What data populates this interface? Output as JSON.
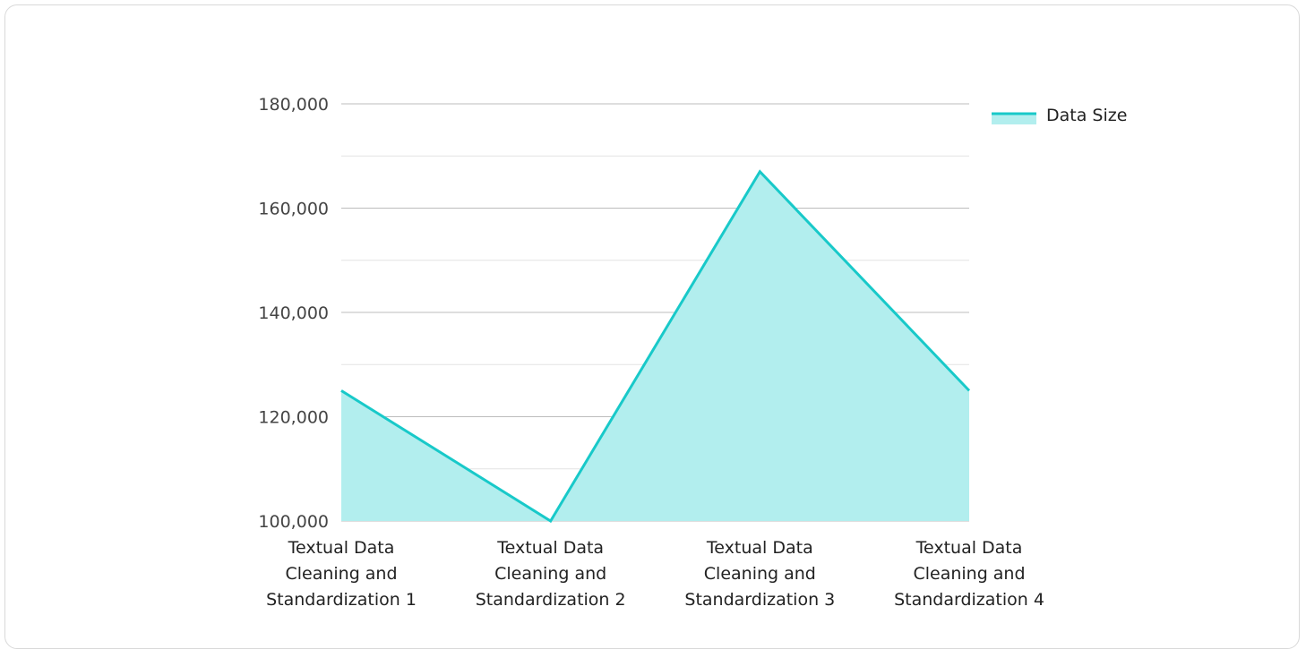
{
  "chart_data": {
    "type": "area",
    "categories": [
      "Textual Data Cleaning and Standardization 1",
      "Textual Data Cleaning and Standardization 2",
      "Textual Data Cleaning and Standardization 3",
      "Textual Data Cleaning and Standardization 4"
    ],
    "category_lines": [
      [
        "Textual Data",
        "Cleaning and",
        "Standardization 1"
      ],
      [
        "Textual Data",
        "Cleaning and",
        "Standardization 2"
      ],
      [
        "Textual Data",
        "Cleaning and",
        "Standardization 3"
      ],
      [
        "Textual Data",
        "Cleaning and",
        "Standardization 4"
      ]
    ],
    "series": [
      {
        "name": "Data Size",
        "values": [
          125000,
          100000,
          167000,
          125000
        ],
        "line_color": "#18c9c9",
        "fill_color": "#b2eeee"
      }
    ],
    "ylim": [
      100000,
      180000
    ],
    "y_ticks": [
      "100,000",
      "120,000",
      "140,000",
      "160,000",
      "180,000"
    ],
    "y_tick_values": [
      100000,
      120000,
      140000,
      160000,
      180000
    ],
    "grid": true,
    "legend_position": "top-right",
    "title": "",
    "xlabel": "",
    "ylabel": ""
  }
}
